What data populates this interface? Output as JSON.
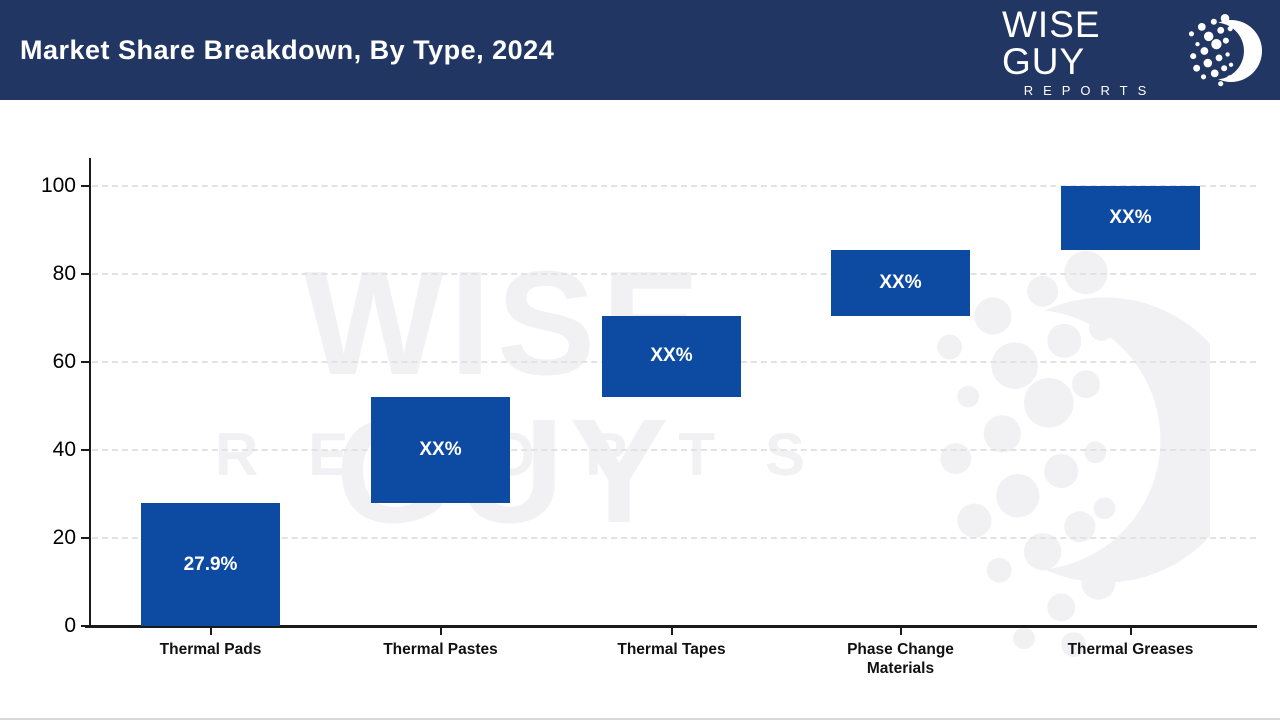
{
  "header": {
    "title": "Market Share Breakdown, By Type, 2024",
    "logo": {
      "line1": "WISE GUY",
      "line2": "REPORTS"
    }
  },
  "watermark": {
    "line1": "WISE GUY",
    "line2": "REPORTS"
  },
  "chart_data": {
    "type": "bar",
    "variant": "waterfall-floating-bars",
    "title": "Market Share Breakdown, By Type, 2024",
    "categories": [
      "Thermal Pads",
      "Thermal Pastes",
      "Thermal Tapes",
      "Phase Change Materials",
      "Thermal Greases"
    ],
    "segments": [
      {
        "category": "Thermal Pads",
        "start": 0,
        "end": 27.9,
        "label": "27.9%"
      },
      {
        "category": "Thermal Pastes",
        "start": 27.9,
        "end": 52.0,
        "label": "XX%"
      },
      {
        "category": "Thermal Tapes",
        "start": 52.0,
        "end": 70.5,
        "label": "XX%"
      },
      {
        "category": "Phase Change Materials",
        "start": 70.5,
        "end": 85.5,
        "label": "XX%"
      },
      {
        "category": "Thermal Greases",
        "start": 85.5,
        "end": 100.0,
        "label": "XX%"
      }
    ],
    "ylim": [
      0,
      100
    ],
    "yticks": [
      0,
      20,
      40,
      60,
      80,
      100
    ],
    "xlabel": "",
    "ylabel": "",
    "grid": "horizontal-dashed",
    "legend": "none",
    "bar_color": "#0d4aa1",
    "label_color": "#ffffff"
  },
  "colors": {
    "header_bg": "#213662",
    "bar_blue": "#0d4aa1",
    "watermark": "#f1f1f4",
    "axis": "#1a1a1a",
    "grid": "#e2e2e2"
  }
}
